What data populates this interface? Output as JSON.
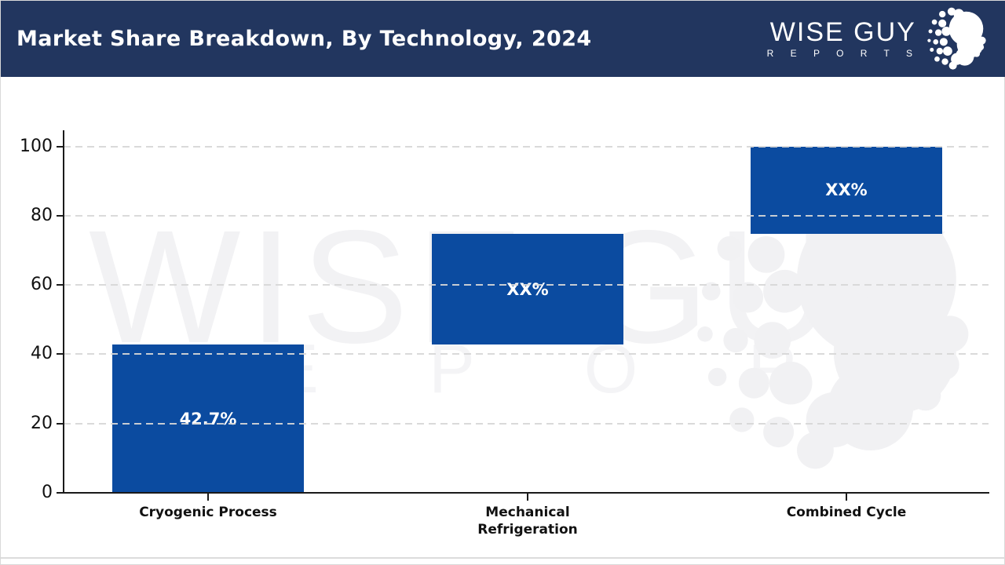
{
  "header": {
    "title": "Market Share Breakdown, By Technology, 2024",
    "logo_line1": "WISE GUY",
    "logo_line2": "R E P O R T S",
    "bg_color": "#22365f"
  },
  "watermark": {
    "line1": "WISE GUY",
    "line2": "R E P O R T S"
  },
  "chart_data": {
    "type": "bar",
    "subtype": "cumulative-segment-bars",
    "title": "Market Share Breakdown, By Technology, 2024",
    "categories": [
      "Cryogenic Process",
      "Mechanical\nRefrigeration",
      "Combined Cycle"
    ],
    "bars": [
      {
        "category": "Cryogenic Process",
        "start": 0,
        "end": 42.7,
        "label": "42.7%"
      },
      {
        "category": "Mechanical Refrigeration",
        "start": 42.7,
        "end": 74.7,
        "label": "XX%"
      },
      {
        "category": "Combined Cycle",
        "start": 74.7,
        "end": 100,
        "label": "XX%"
      }
    ],
    "y_ticks": [
      0,
      20,
      40,
      60,
      80,
      100
    ],
    "ylim": [
      0,
      104.5
    ],
    "bar_color": "#0b4ba0",
    "grid": "horizontal-dashed",
    "legend": "none",
    "xlabel": "",
    "ylabel": ""
  }
}
